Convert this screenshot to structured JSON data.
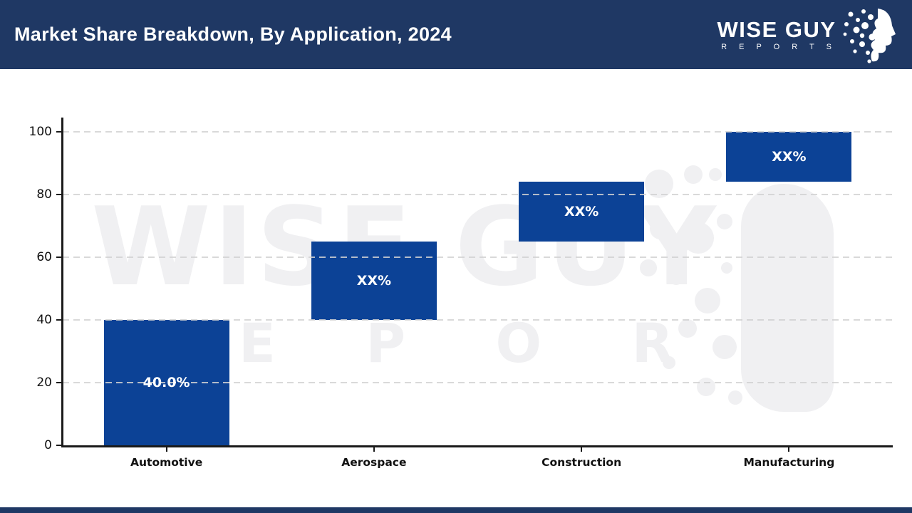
{
  "header": {
    "title": "Market Share Breakdown, By Application, 2024",
    "bg_color": "#1f3864",
    "logo": {
      "line1": "WISE GUY",
      "line2": "R E P O R T S"
    }
  },
  "watermark": {
    "line1": "WISE GUY",
    "line2": "R E P O R T S"
  },
  "footer": {
    "bg_color": "#1f3864"
  },
  "chart_data": {
    "type": "bar",
    "subtype": "waterfall",
    "title": "Market Share Breakdown, By Application, 2024",
    "categories": [
      "Automotive",
      "Aerospace",
      "Construction",
      "Manufacturing"
    ],
    "segments": [
      {
        "start": 0,
        "end": 40
      },
      {
        "start": 40,
        "end": 65
      },
      {
        "start": 65,
        "end": 84
      },
      {
        "start": 84,
        "end": 100
      }
    ],
    "values": [
      40,
      25,
      19,
      16
    ],
    "bar_labels": [
      "40.0%",
      "XX%",
      "XX%",
      "XX%"
    ],
    "y_ticks": [
      0,
      20,
      40,
      60,
      80,
      100
    ],
    "ylim": [
      0,
      105
    ],
    "xlabel": "",
    "ylabel": "",
    "bar_color": "#0c4296",
    "grid": "horizontal dashed",
    "legend": "none"
  }
}
